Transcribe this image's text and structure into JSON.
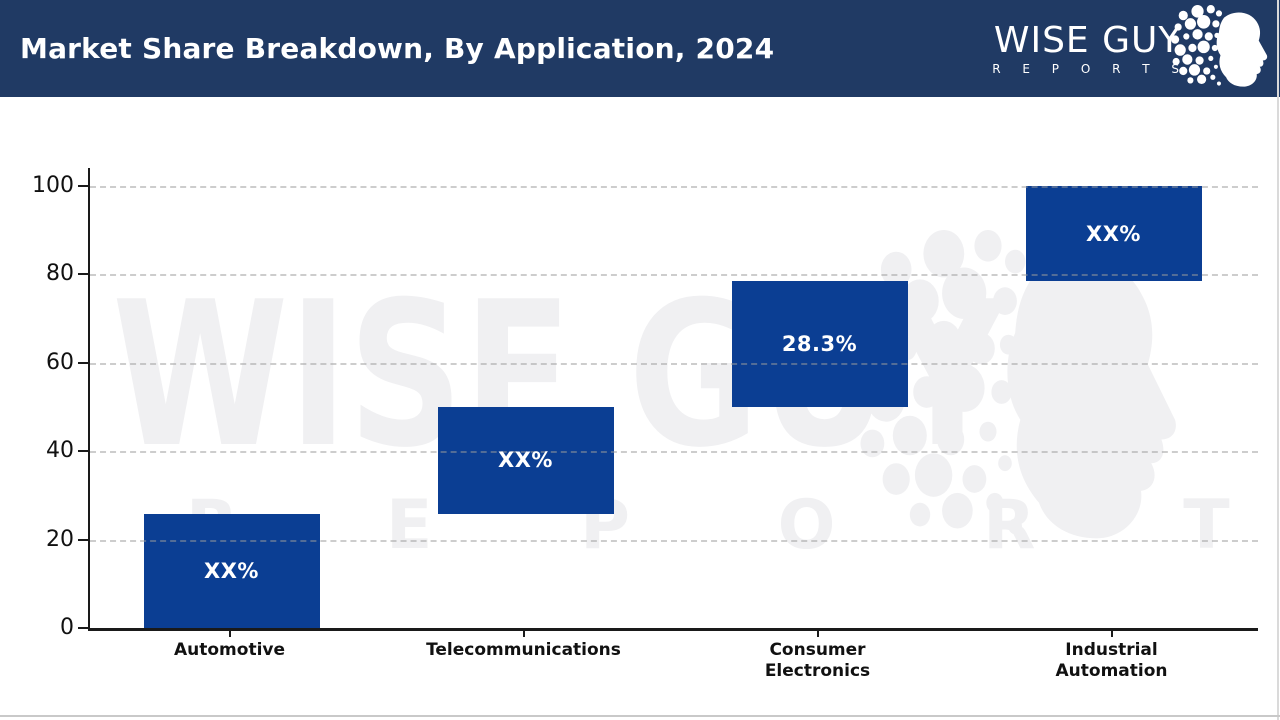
{
  "header": {
    "title": "Market Share Breakdown, By Application, 2024",
    "background_color": "#203a64",
    "logo": {
      "line1": "WISE GUY",
      "line2": "R E P O R T S",
      "head_icon": "dotted-head-profile"
    }
  },
  "watermark": {
    "line1": "WISE GUY",
    "line2": "R E P O R T S"
  },
  "chart_data": {
    "type": "bar",
    "variant": "floating-segment-waterfall",
    "title": "Market Share Breakdown, By Application, 2024",
    "categories": [
      "Automotive",
      "Telecommunications",
      "Consumer Electronics",
      "Industrial Automation"
    ],
    "segments": [
      {
        "category": "Automotive",
        "xlabel_lines": [
          "Automotive"
        ],
        "start": 0,
        "end": 25.7,
        "label": "XX%"
      },
      {
        "category": "Telecommunications",
        "xlabel_lines": [
          "Telecommunications"
        ],
        "start": 25.7,
        "end": 50.1,
        "label": "XX%"
      },
      {
        "category": "Consumer Electronics",
        "xlabel_lines": [
          "Consumer",
          "Electronics"
        ],
        "start": 50.1,
        "end": 78.4,
        "label": "28.3%"
      },
      {
        "category": "Industrial Automation",
        "xlabel_lines": [
          "Industrial",
          "Automation"
        ],
        "start": 78.4,
        "end": 100,
        "label": "XX%"
      }
    ],
    "ylim": [
      0,
      100
    ],
    "yticks": [
      0,
      20,
      40,
      60,
      80,
      100
    ],
    "xlabel": "",
    "ylabel": "",
    "grid": "horizontal-dashed",
    "legend": "none",
    "bar_color": "#0b3e93",
    "bar_label_color": "#ffffff",
    "axis_color": "#1a1a1a"
  }
}
